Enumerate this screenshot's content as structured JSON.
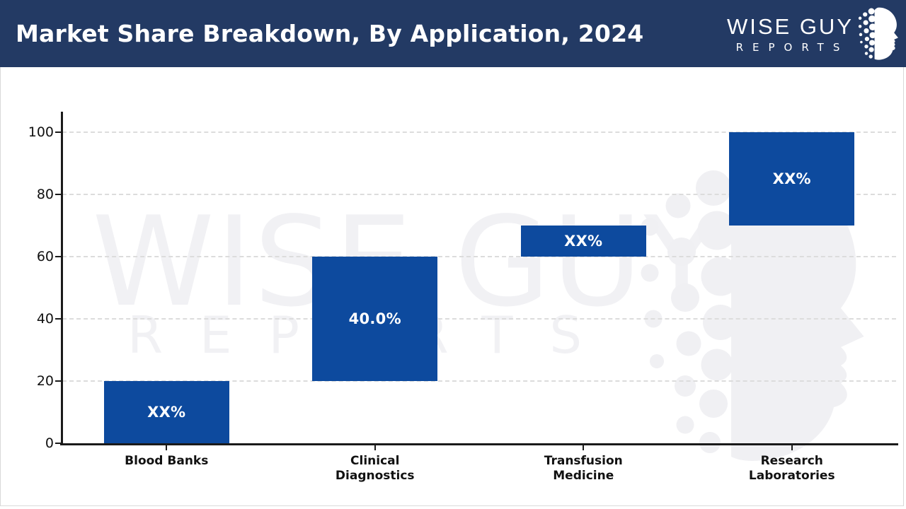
{
  "header": {
    "title": "Market Share Breakdown, By Application, 2024",
    "bg_color": "#233a64",
    "logo": {
      "line1": "WISE GUY",
      "line2": "REPORTS"
    }
  },
  "watermark": {
    "line1": "WISE GUY",
    "line2": "REPORTS"
  },
  "chart_data": {
    "type": "bar",
    "subtype": "waterfall",
    "title": "Market Share Breakdown, By Application, 2024",
    "categories": [
      "Blood Banks",
      "Clinical Diagnostics",
      "Transfusion Medicine",
      "Research Laboratories"
    ],
    "category_label_lines": [
      [
        "Blood Banks"
      ],
      [
        "Clinical",
        "Diagnostics"
      ],
      [
        "Transfusion",
        "Medicine"
      ],
      [
        "Research",
        "Laboratories"
      ]
    ],
    "segments": [
      {
        "category": "Blood Banks",
        "start": 0,
        "end": 20,
        "label": "XX%"
      },
      {
        "category": "Clinical Diagnostics",
        "start": 20,
        "end": 60,
        "label": "40.0%"
      },
      {
        "category": "Transfusion Medicine",
        "start": 60,
        "end": 70,
        "label": "XX%"
      },
      {
        "category": "Research Laboratories",
        "start": 70,
        "end": 100,
        "label": "XX%"
      }
    ],
    "ylim": [
      0,
      100
    ],
    "yticks": [
      0,
      20,
      40,
      60,
      80,
      100
    ],
    "xlabel": "",
    "ylabel": "",
    "grid": "horizontal-dashed",
    "legend": "none",
    "bar_color": "#0d4a9e",
    "bar_label_color": "#ffffff",
    "grid_color": "#dcdcdc",
    "axis_color": "#1a1a1a"
  }
}
